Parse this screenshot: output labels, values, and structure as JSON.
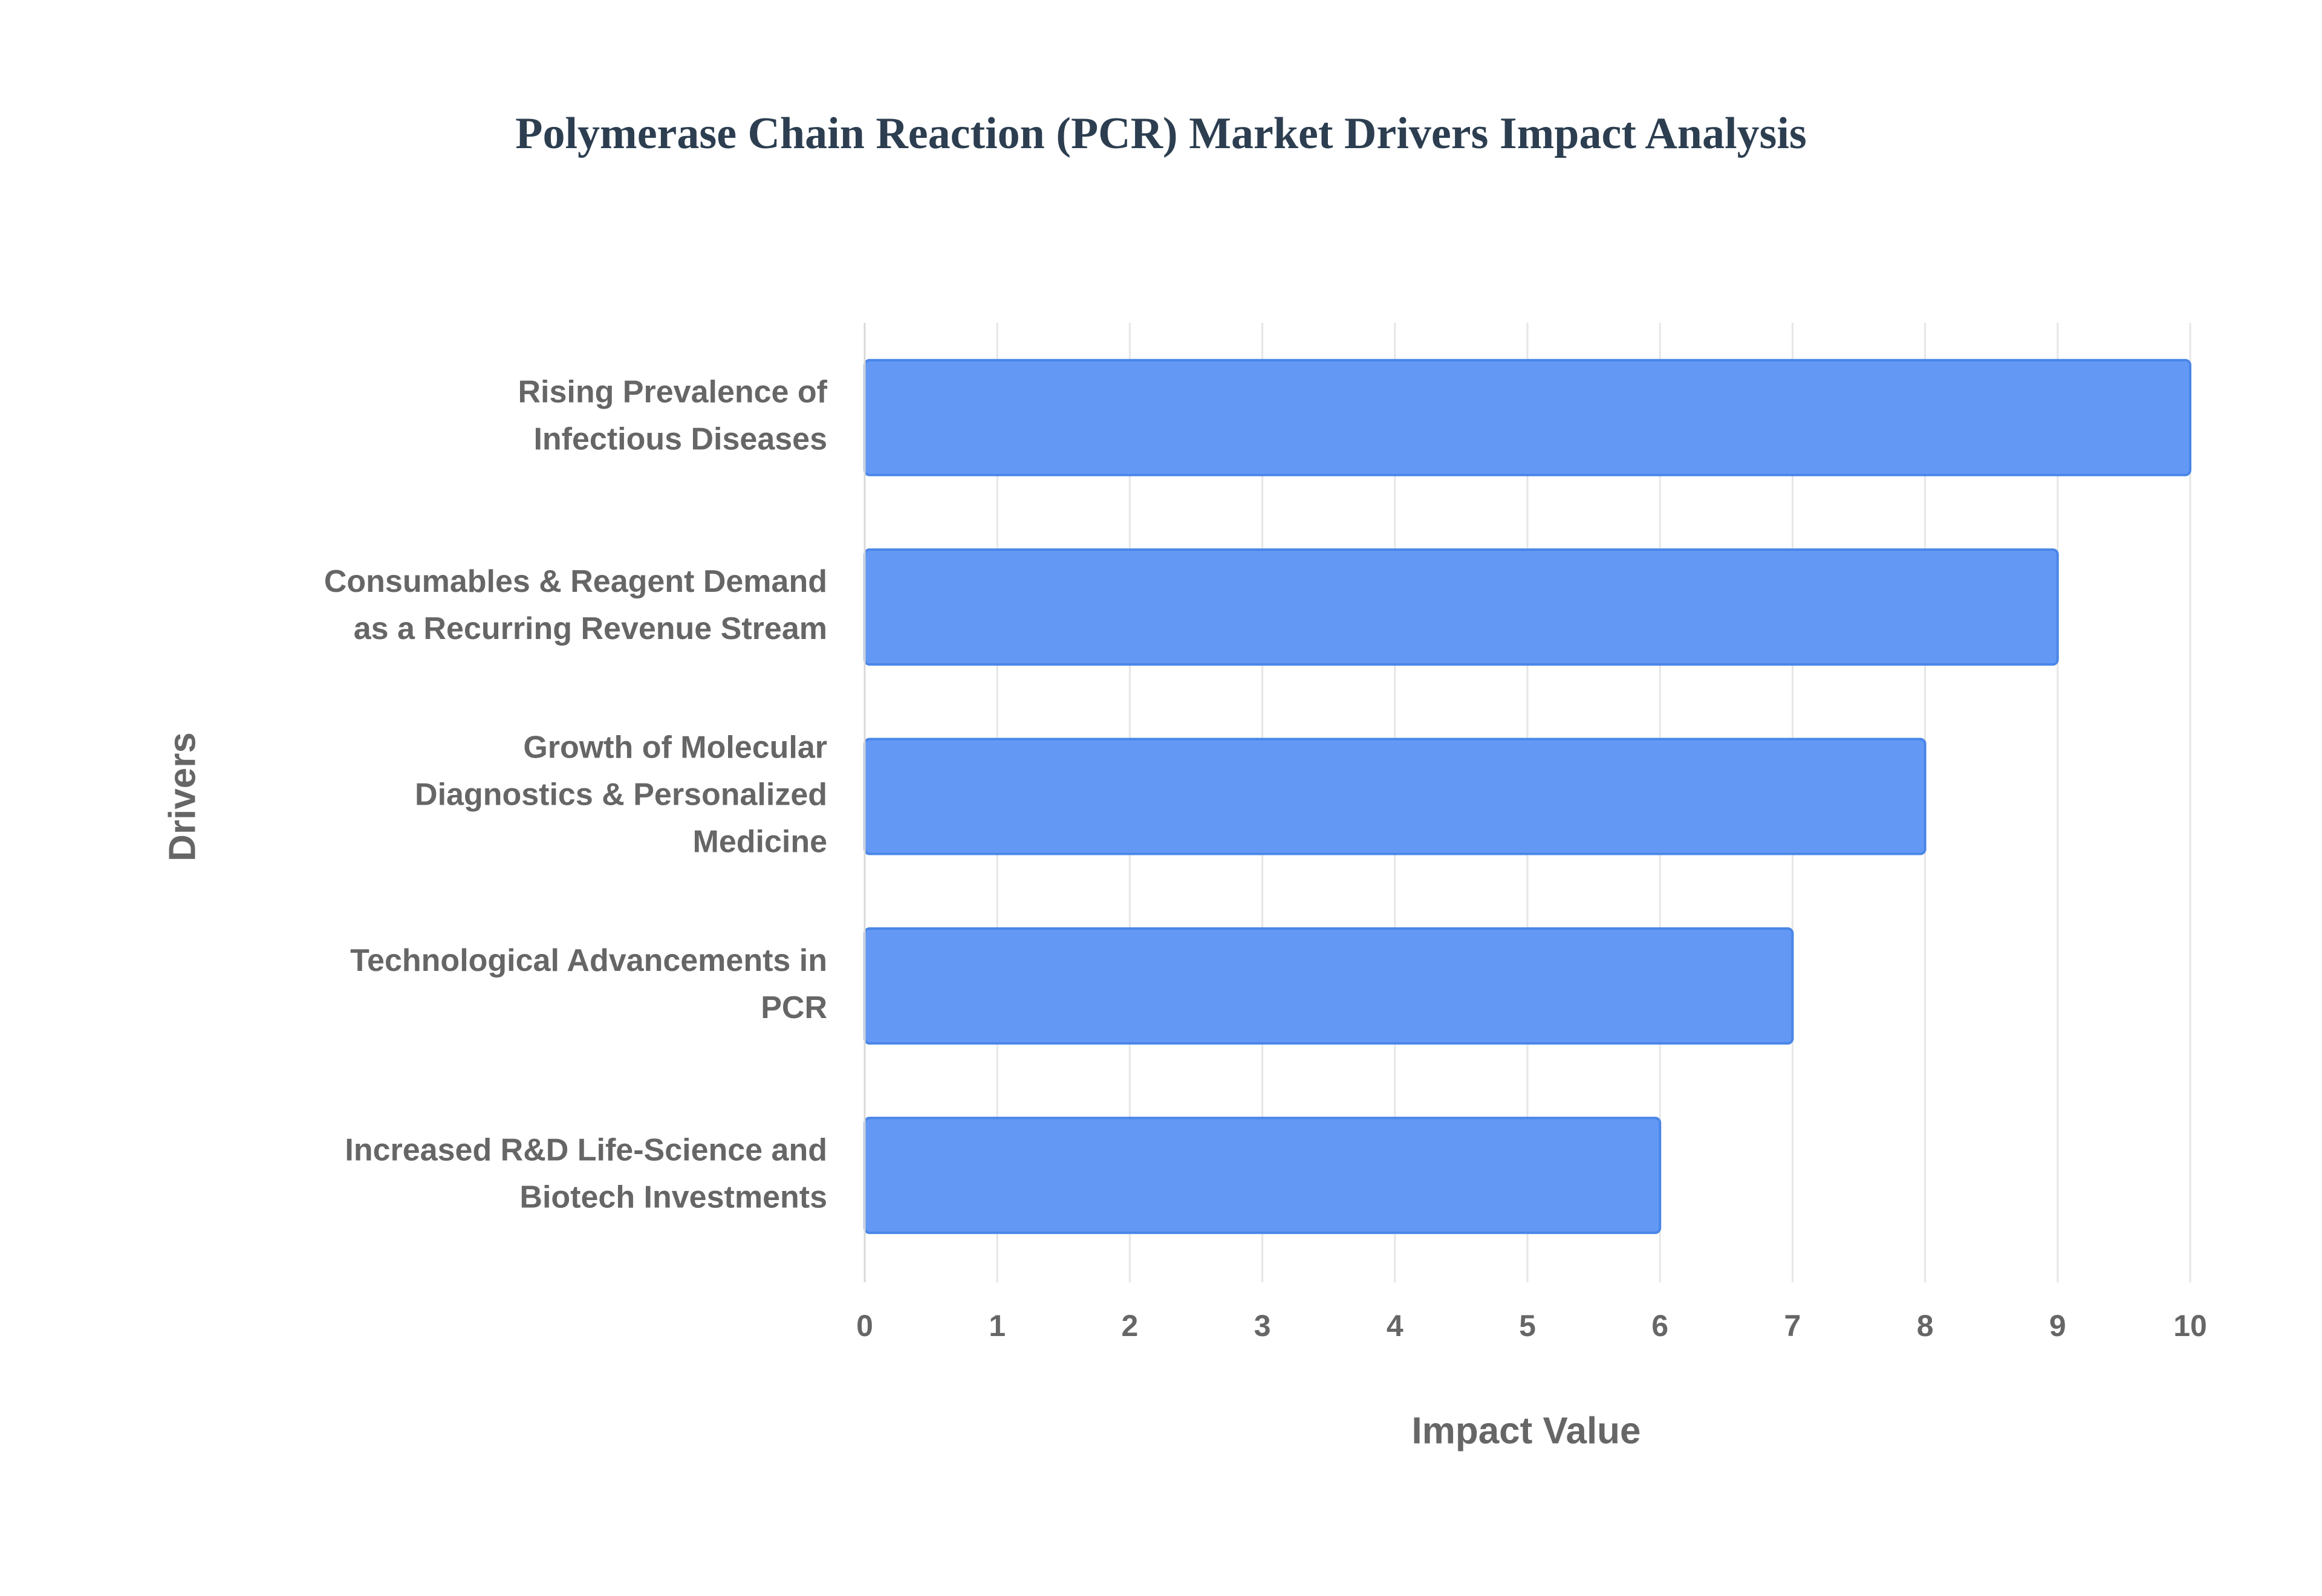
{
  "chart_data": {
    "type": "hbar",
    "title": "Polymerase Chain Reaction (PCR) Market Drivers Impact Analysis",
    "x_label": "Impact Value",
    "y_label": "Drivers",
    "categories": [
      "Rising Prevalence of Infectious Diseases",
      "Consumables & Reagent Demand as a Recurring Revenue Stream",
      "Growth of Molecular Diagnostics & Personalized Medicine",
      "Technological Advancements in PCR",
      "Increased R&D Life-Science and Biotech Investments"
    ],
    "values": [
      10,
      9,
      8,
      7,
      6
    ],
    "color": "#6399f5",
    "xlim": [
      0,
      10
    ],
    "xticks": [
      0,
      1,
      2,
      3,
      4,
      5,
      6,
      7,
      8,
      9,
      10
    ],
    "grid": true
  }
}
